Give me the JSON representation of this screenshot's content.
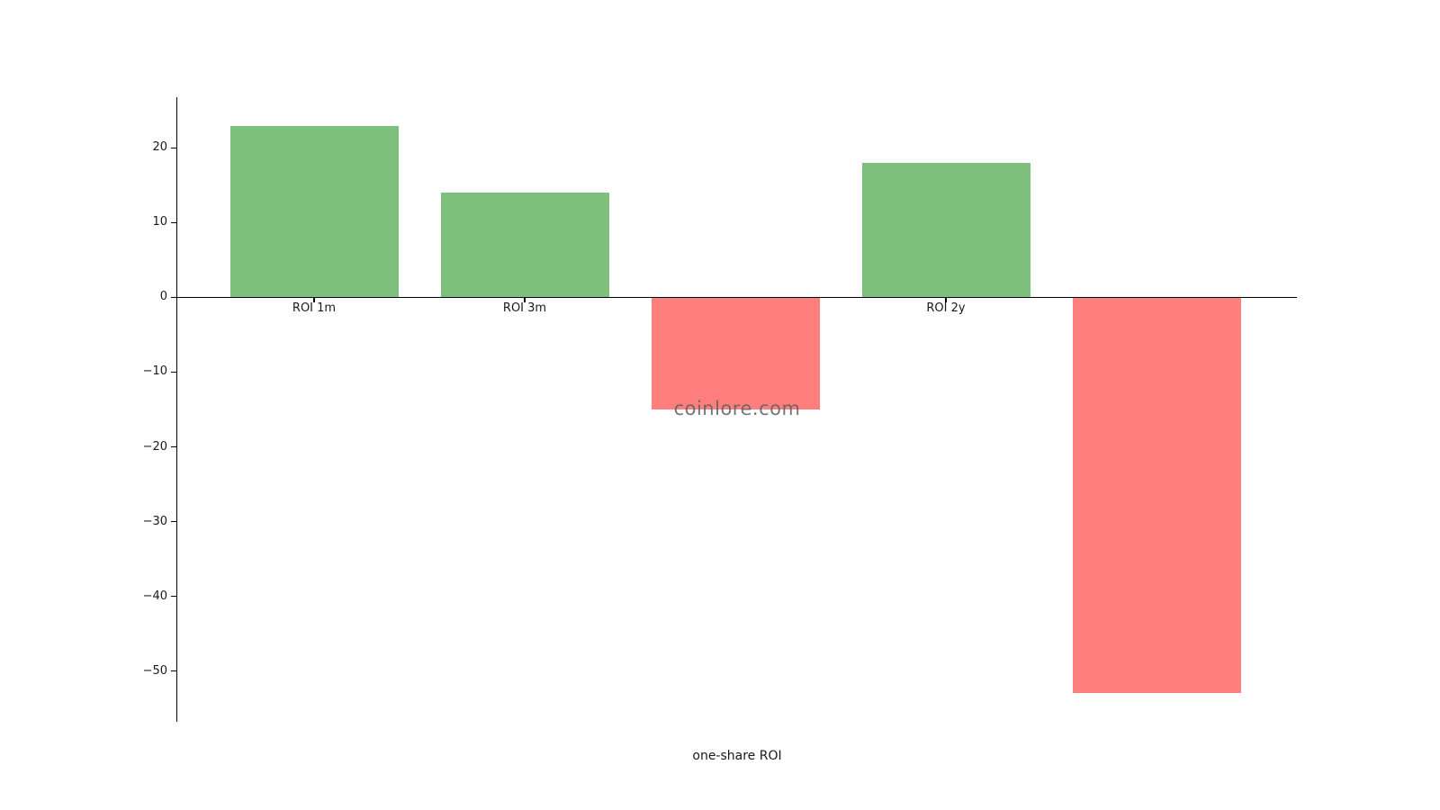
{
  "chart_data": {
    "type": "bar",
    "title": "",
    "xlabel": "one-share ROI",
    "ylabel": "",
    "categories": [
      "ROI 1m",
      "ROI 3m",
      "",
      "ROI 2y",
      ""
    ],
    "values": [
      23,
      14,
      -15,
      18,
      -53
    ],
    "series": [
      {
        "name": "one-share ROI",
        "values": [
          23,
          14,
          -15,
          18,
          -53
        ]
      }
    ],
    "yticks": [
      20,
      10,
      0,
      -10,
      -20,
      -30,
      -40,
      -50
    ],
    "ytick_labels": [
      "20",
      "10",
      "0",
      "−10",
      "−20",
      "−30",
      "−40",
      "−50"
    ],
    "ylim": [
      -56.8,
      26.8
    ],
    "grid": false,
    "legend_position": "none",
    "watermark": "coinlore.com"
  },
  "colors": {
    "positive_bar": "#7dbf7d",
    "negative_bar": "#ff7f7f",
    "axis": "#000000",
    "tick_text": "#1a1a1a",
    "watermark": "#5f5f5f",
    "background": "#ffffff"
  }
}
